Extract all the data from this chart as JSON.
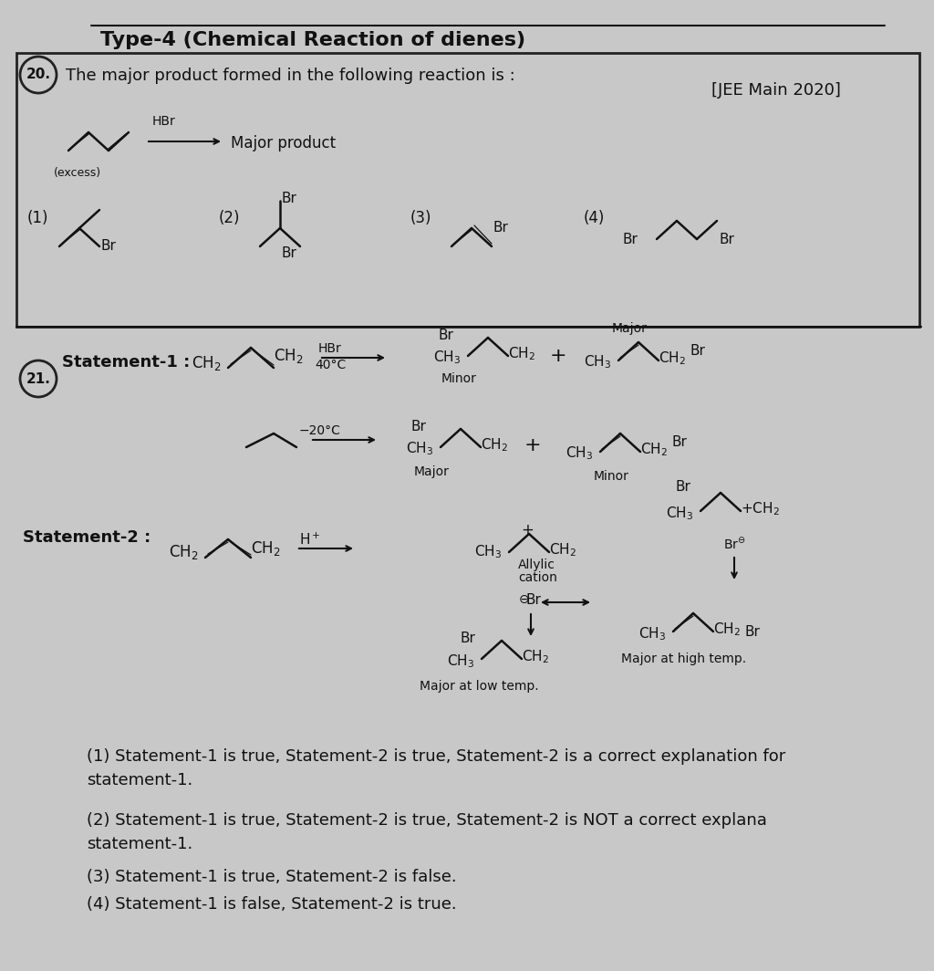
{
  "background_color": "#c8c8c8",
  "title_text": "Type-4 (Chemical Reaction of dienes)",
  "q20_text": "The major product formed in the following reaction is :",
  "jee_text": "[JEE Main 2020]",
  "options": [
    "(1) Statement-1 is true, Statement-2 is true, Statement-2 is a correct explanation for",
    "statement-1.",
    "(2) Statement-1 is true, Statement-2 is true, Statement-2 is NOT a correct explana",
    "statement-1.",
    "(3) Statement-1 is true, Statement-2 is false.",
    "(4) Statement-1 is false, Statement-2 is true."
  ]
}
